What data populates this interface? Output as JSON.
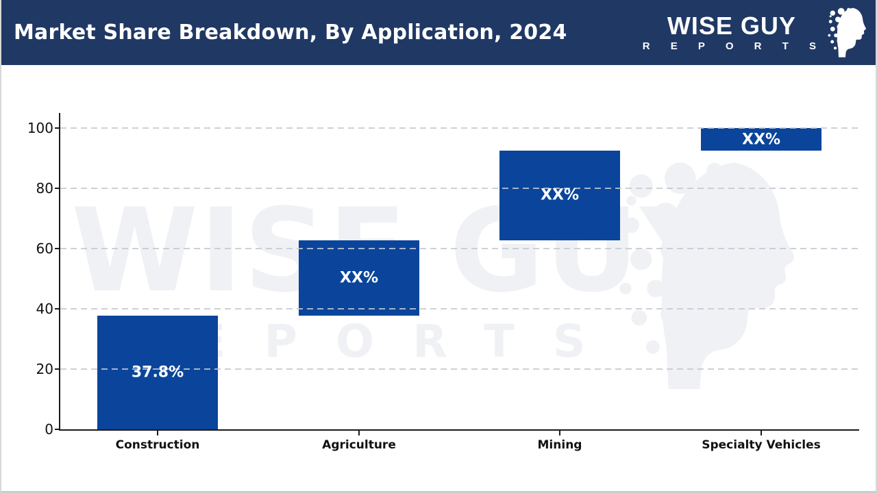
{
  "header": {
    "title": "Market Share Breakdown, By Application, 2024",
    "logo": {
      "line1": "WISE GUY",
      "line2": "R E P O R T S"
    }
  },
  "watermark": {
    "line1": "WISE GUY",
    "line2": "REPORTS"
  },
  "colors": {
    "header_bg": "#203864",
    "bar": "#0a459b",
    "axis": "#1a1a1a",
    "gridline": "#cfd3da",
    "bar_label_text": "#ffffff",
    "watermark": "#f0f1f4"
  },
  "chart_data": {
    "type": "waterfall",
    "title": "Market Share Breakdown, By Application, 2024",
    "categories": [
      "Construction",
      "Agriculture",
      "Mining",
      "Specialty Vehicles"
    ],
    "segments": [
      {
        "category": "Construction",
        "start": 0,
        "end": 37.8,
        "label": "37.8%"
      },
      {
        "category": "Agriculture",
        "start": 37.8,
        "end": 62.8,
        "label": "XX%"
      },
      {
        "category": "Mining",
        "start": 62.8,
        "end": 92.5,
        "label": "XX%"
      },
      {
        "category": "Specialty Vehicles",
        "start": 92.5,
        "end": 100,
        "label": "XX%"
      }
    ],
    "y_ticks": [
      0,
      20,
      40,
      60,
      80,
      100
    ],
    "ylim": [
      0,
      105
    ],
    "xlabel": "",
    "ylabel": "",
    "grid": "dashed-horizontal",
    "legend": "none"
  }
}
